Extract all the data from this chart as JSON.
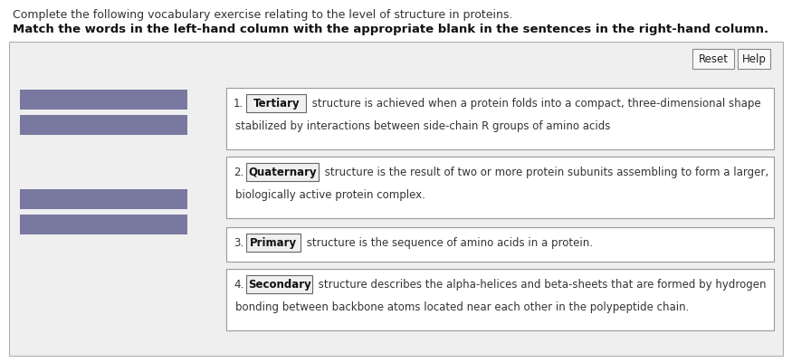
{
  "title_line1": "Complete the following vocabulary exercise relating to the level of structure in proteins.",
  "title_line2": "Match the words in the left-hand column with the appropriate blank in the sentences in the right-hand column.",
  "bg_outer": "#ffffff",
  "bg_panel": "#f0f0f0",
  "left_bar_color": "#7878a0",
  "reset_label": "Reset",
  "help_label": "Help",
  "font_size_title1": 9.0,
  "font_size_title2": 9.5,
  "font_size_box": 8.5,
  "font_size_btn": 8.5,
  "items": [
    {
      "number": "1.",
      "keyword": "Tertiary",
      "line1": " structure is achieved when a protein folds into a compact, three-dimensional shape",
      "line2": "stabilized by interactions between side-chain R groups of amino acids"
    },
    {
      "number": "2.",
      "keyword": "Quaternary",
      "line1": " structure is the result of two or more protein subunits assembling to form a larger,",
      "line2": "biologically active protein complex."
    },
    {
      "number": "3.",
      "keyword": "Primary",
      "line1": " structure is the sequence of amino acids in a protein.",
      "line2": null
    },
    {
      "number": "4.",
      "keyword": "Secondary",
      "line1": " structure describes the alpha-helices and beta-sheets that are formed by hydrogen",
      "line2": "bonding between backbone atoms located near each other in the polypeptide chain."
    }
  ]
}
